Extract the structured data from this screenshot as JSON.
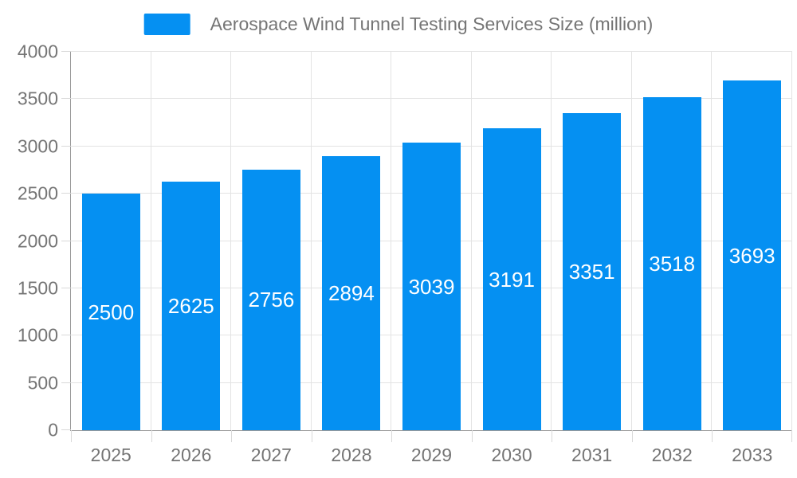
{
  "legend": {
    "label": "Aerospace Wind Tunnel Testing Services Size (million)",
    "swatch_color": "#0590F2"
  },
  "chart_data": {
    "type": "bar",
    "title": "Aerospace Wind Tunnel Testing Services Size (million)",
    "categories": [
      "2025",
      "2026",
      "2027",
      "2028",
      "2029",
      "2030",
      "2031",
      "2032",
      "2033"
    ],
    "values": [
      2500,
      2625,
      2756,
      2894,
      3039,
      3191,
      3351,
      3518,
      3693
    ],
    "xlabel": "",
    "ylabel": "",
    "ylim": [
      0,
      4000
    ],
    "ytick_step": 500,
    "grid": true,
    "legend_position": "top-center",
    "bar_color": "#0590F2",
    "bar_label_color": "#ffffff",
    "axis_label_color": "#757575",
    "grid_color": "#e3e3e3",
    "tick_color": "#d9d9d9",
    "axis_line_color": "#999999",
    "background_color": "#ffffff"
  }
}
